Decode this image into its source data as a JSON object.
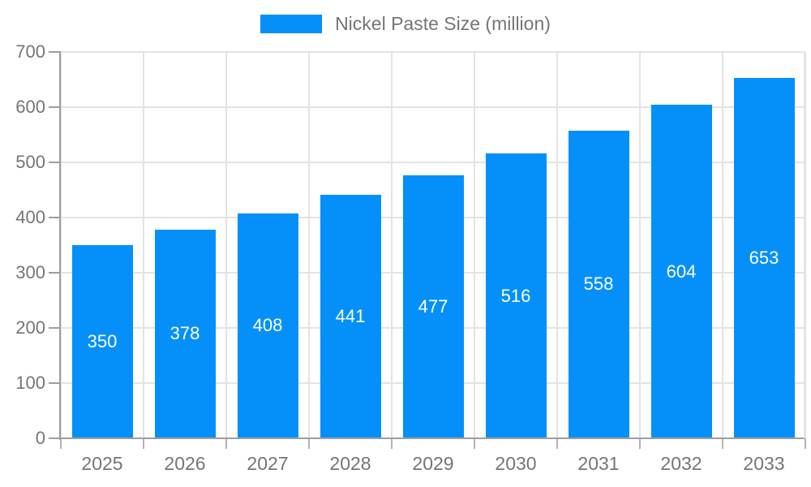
{
  "chart_data": {
    "type": "bar",
    "title": "Nickel Paste Size (million)",
    "legend": {
      "position": "top",
      "label": "Nickel Paste Size (million)"
    },
    "categories": [
      "2025",
      "2026",
      "2027",
      "2028",
      "2029",
      "2030",
      "2031",
      "2032",
      "2033"
    ],
    "values": [
      350,
      378,
      408,
      441,
      477,
      516,
      558,
      604,
      653
    ],
    "value_labels": [
      "350",
      "378",
      "408",
      "441",
      "477",
      "516",
      "558",
      "604",
      "653"
    ],
    "xlabel": "",
    "ylabel": "",
    "ylim": [
      0,
      700
    ],
    "yticks": [
      0,
      100,
      200,
      300,
      400,
      500,
      600,
      700
    ],
    "grid": true,
    "colors": {
      "bar": "#0590f9",
      "axis": "#9e9e9e",
      "grid": "#e3e3e3",
      "tick": "#b3b3b3",
      "text": "#757575",
      "value_label": "#ffffff",
      "background": "#ffffff"
    }
  }
}
